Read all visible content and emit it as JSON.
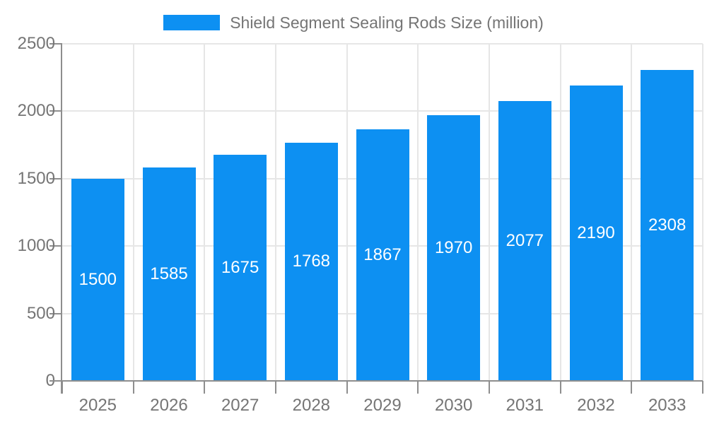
{
  "legend": {
    "title": "Shield Segment Sealing Rods Size (million)"
  },
  "chart_data": {
    "type": "bar",
    "title": "Shield Segment Sealing Rods Size (million)",
    "categories": [
      "2025",
      "2026",
      "2027",
      "2028",
      "2029",
      "2030",
      "2031",
      "2032",
      "2033"
    ],
    "values": [
      1500,
      1585,
      1675,
      1768,
      1867,
      1970,
      2077,
      2190,
      2308
    ],
    "xlabel": "",
    "ylabel": "",
    "ylim": [
      0,
      2500
    ],
    "yticks": [
      0,
      500,
      1000,
      1500,
      2000,
      2500
    ],
    "grid": true,
    "legend_position": "top-center",
    "colors": {
      "bar": "#0d90f2",
      "grid": "#e6e6e6",
      "axis": "#8e8e8e",
      "tick_text": "#757575",
      "bar_label_text": "#ffffff",
      "background": "#ffffff"
    }
  }
}
